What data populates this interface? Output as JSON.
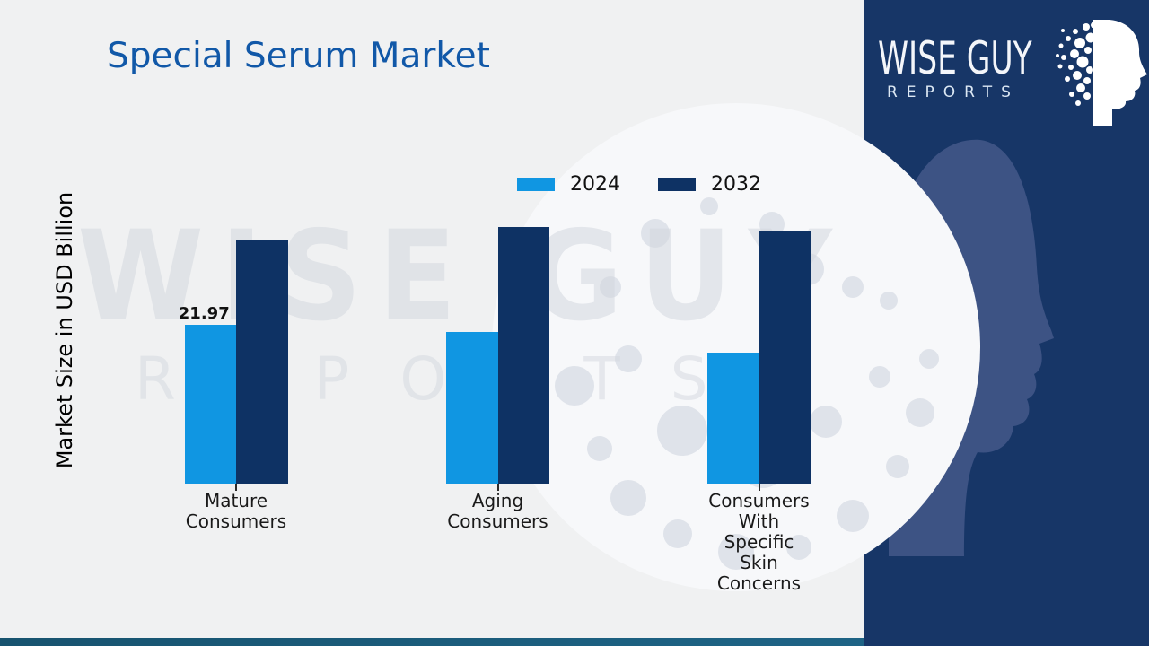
{
  "page": {
    "background": "#f0f1f2",
    "bottom_bar_color": "#1d6081",
    "panel_color": "#173667",
    "title_color": "#1158a8"
  },
  "title": "Special Serum Market",
  "brand": {
    "line1": "WISE GUY",
    "line2": "REPORTS"
  },
  "watermark": {
    "line1": "WISE GUY",
    "line2": "REPORTS"
  },
  "chart_data": {
    "type": "bar",
    "title": "Special Serum Market",
    "xlabel": "",
    "ylabel": "Market Size in USD Billion",
    "categories": [
      "Mature Consumers",
      "Aging Consumers",
      "Consumers With Specific Skin Concerns"
    ],
    "category_lines": [
      [
        "Mature",
        "Consumers"
      ],
      [
        "Aging",
        "Consumers"
      ],
      [
        "Consumers",
        "With",
        "Specific",
        "Skin",
        "Concerns"
      ]
    ],
    "series": [
      {
        "name": "2024",
        "color": "#1096e2",
        "values": [
          21.97,
          21.0,
          18.1
        ]
      },
      {
        "name": "2032",
        "color": "#0e3264",
        "values": [
          33.6,
          35.5,
          34.9
        ]
      }
    ],
    "value_labels": [
      {
        "series_index": 0,
        "category_index": 0,
        "text": "21.97"
      }
    ],
    "ylim": [
      0,
      40
    ],
    "grid": false,
    "legend_position": "top-center"
  }
}
